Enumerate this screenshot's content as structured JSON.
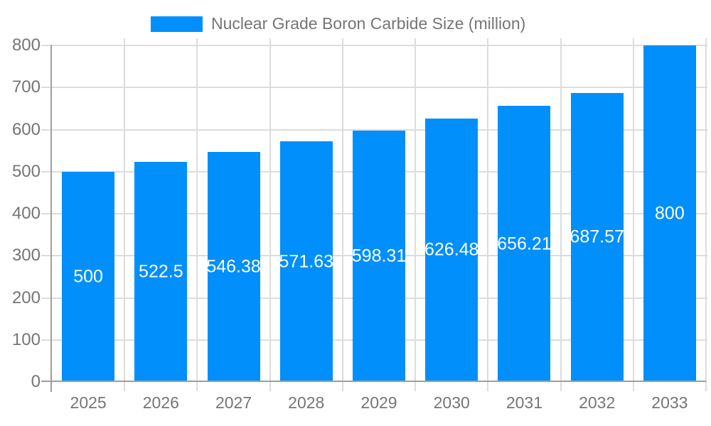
{
  "chart_data": {
    "type": "bar",
    "title": "Nuclear Grade Boron Carbide Size (million)",
    "categories": [
      "2025",
      "2026",
      "2027",
      "2028",
      "2029",
      "2030",
      "2031",
      "2032",
      "2033"
    ],
    "values": [
      500,
      522.5,
      546.38,
      571.63,
      598.31,
      626.48,
      656.21,
      687.57,
      800
    ],
    "value_labels": [
      "500",
      "522.5",
      "546.38",
      "571.63",
      "598.31",
      "626.48",
      "656.21",
      "687.57",
      "800"
    ],
    "xlabel": "",
    "ylabel": "",
    "ylim": [
      0,
      800
    ],
    "yticks": [
      0,
      100,
      200,
      300,
      400,
      500,
      600,
      700,
      800
    ],
    "grid": true,
    "legend_position": "top"
  },
  "colors": {
    "bar": "#008FFB",
    "bar_label": "#FFFFFF",
    "grid": "#DCDCDC",
    "axis": "#9E9E9E",
    "text": "#757575",
    "background": "#FFFFFF"
  }
}
